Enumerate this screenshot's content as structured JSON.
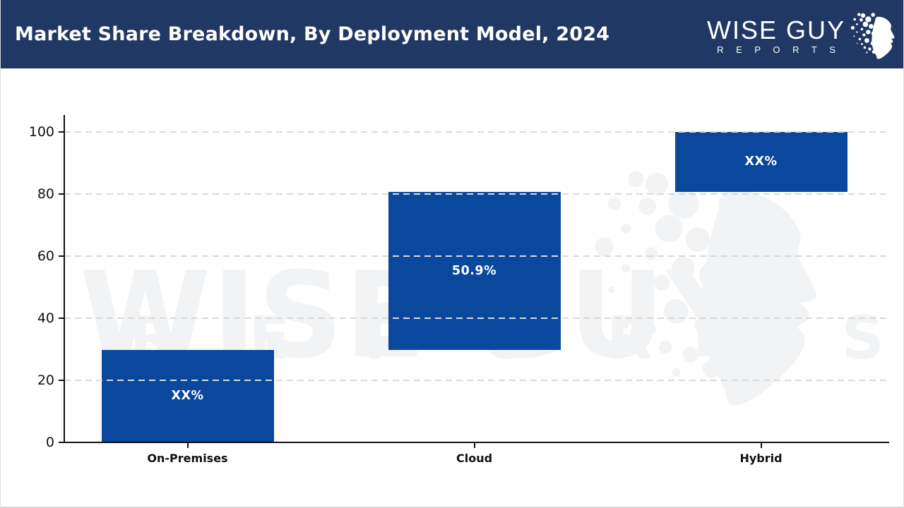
{
  "header": {
    "title": "Market Share Breakdown, By Deployment Model, 2024",
    "logo": {
      "name": "WISE GUY",
      "subname": "R E P O R T S"
    }
  },
  "watermark": {
    "name": "WISE GUY",
    "subname": "R E P O R T S"
  },
  "colors": {
    "header_bg": "#1f3864",
    "bar": "#0a489e",
    "gridline": "#d9d9d9",
    "watermark_gray": "#f2f3f5",
    "axis": "#111111",
    "bar_label_text": "#ffffff"
  },
  "chart_data": {
    "type": "bar",
    "subtype": "floating-segment-waterfall",
    "title": "Market Share Breakdown, By Deployment Model, 2024",
    "categories": [
      "On-Premises",
      "Cloud",
      "Hybrid"
    ],
    "segments": [
      {
        "category": "On-Premises",
        "start": 0,
        "end": 29.8,
        "label": "XX%"
      },
      {
        "category": "Cloud",
        "start": 29.8,
        "end": 80.7,
        "label": "50.9%"
      },
      {
        "category": "Hybrid",
        "start": 80.7,
        "end": 100,
        "label": "XX%"
      }
    ],
    "yticks": [
      0,
      20,
      40,
      60,
      80,
      100
    ],
    "ylim": [
      0,
      105
    ],
    "xlabel": "",
    "ylabel": "",
    "grid": "horizontal-dashed",
    "legend": "none"
  }
}
